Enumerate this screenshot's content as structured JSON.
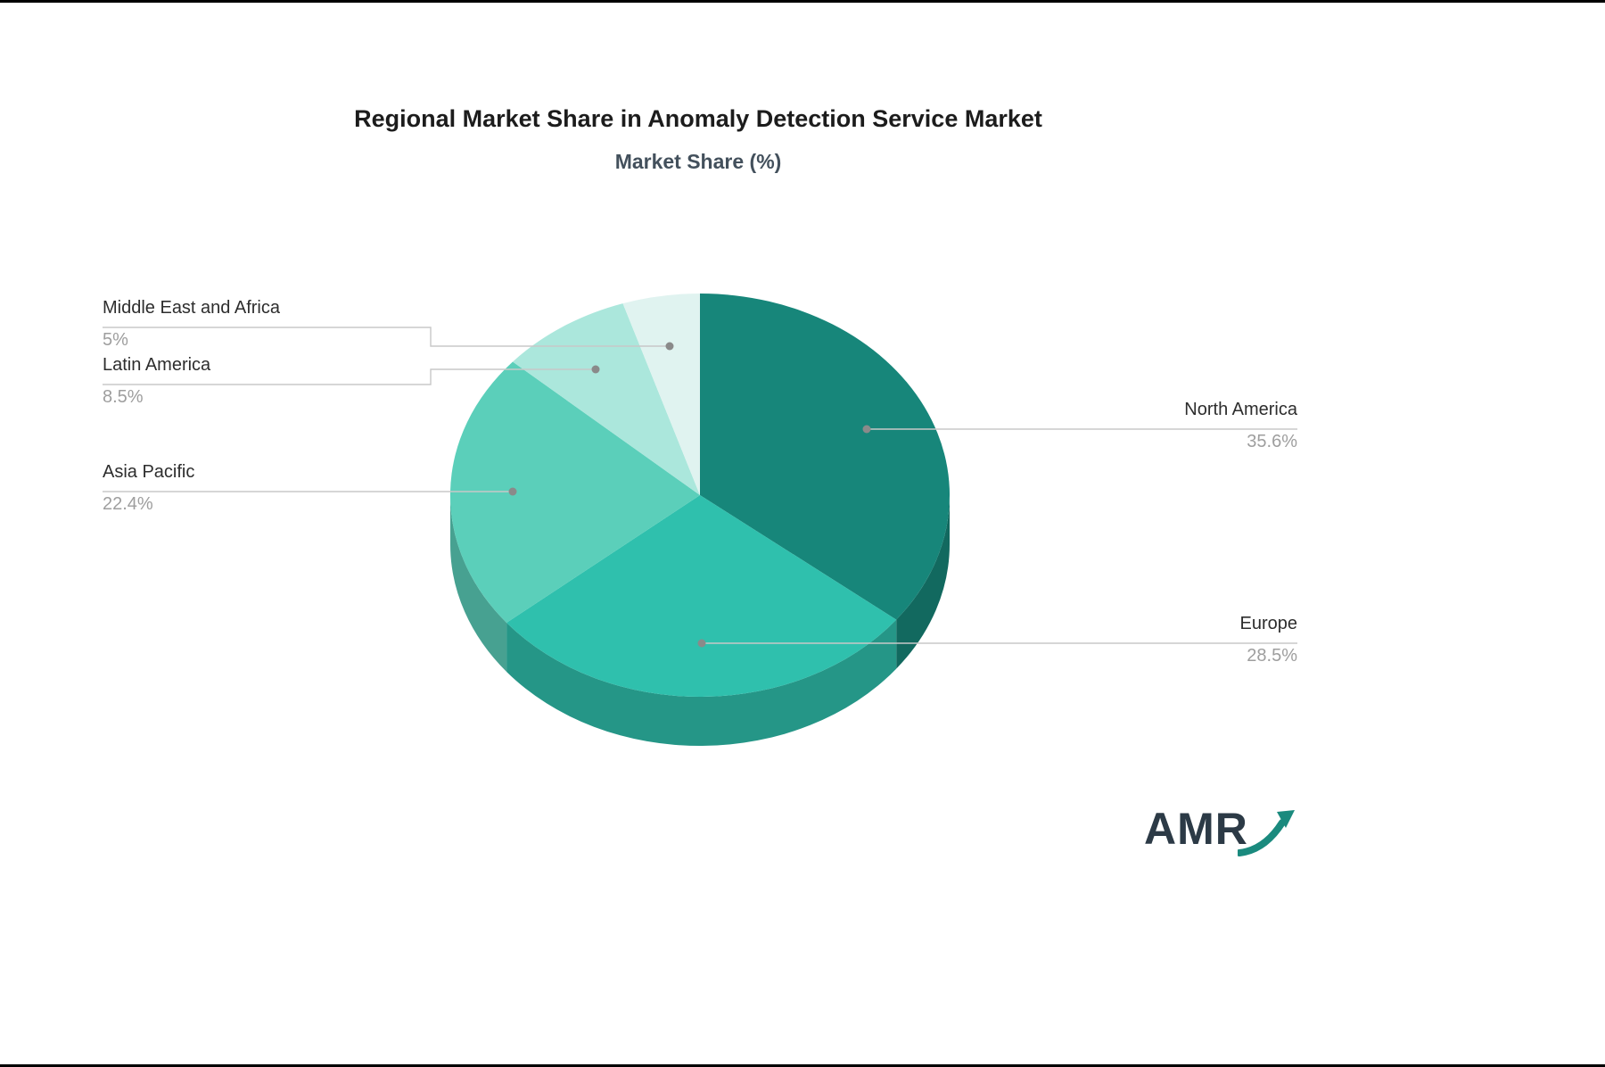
{
  "chart_data": {
    "type": "pie",
    "title": "Regional Market Share in Anomaly Detection Service Market",
    "subtitle": "Market Share (%)",
    "labels": [
      "North America",
      "Europe",
      "Asia Pacific",
      "Latin America",
      "Middle East and Africa"
    ],
    "values": [
      35.6,
      28.5,
      22.4,
      8.5,
      5
    ],
    "value_labels": [
      "35.6%",
      "28.5%",
      "22.4%",
      "8.5%",
      "5%"
    ],
    "colors": [
      "#17867a",
      "#2fc0ad",
      "#5bcfba",
      "#abe7dc",
      "#e0f3f0"
    ],
    "start_angle_deg": 0,
    "direction": "clockwise",
    "style": "3d",
    "legend_position": "none",
    "line_color": "#c8c8c8",
    "dot_color": "#8a8a8a",
    "label_color": "#2d2d2d",
    "value_color": "#9e9e9e"
  },
  "logo": {
    "text": "AMR"
  }
}
